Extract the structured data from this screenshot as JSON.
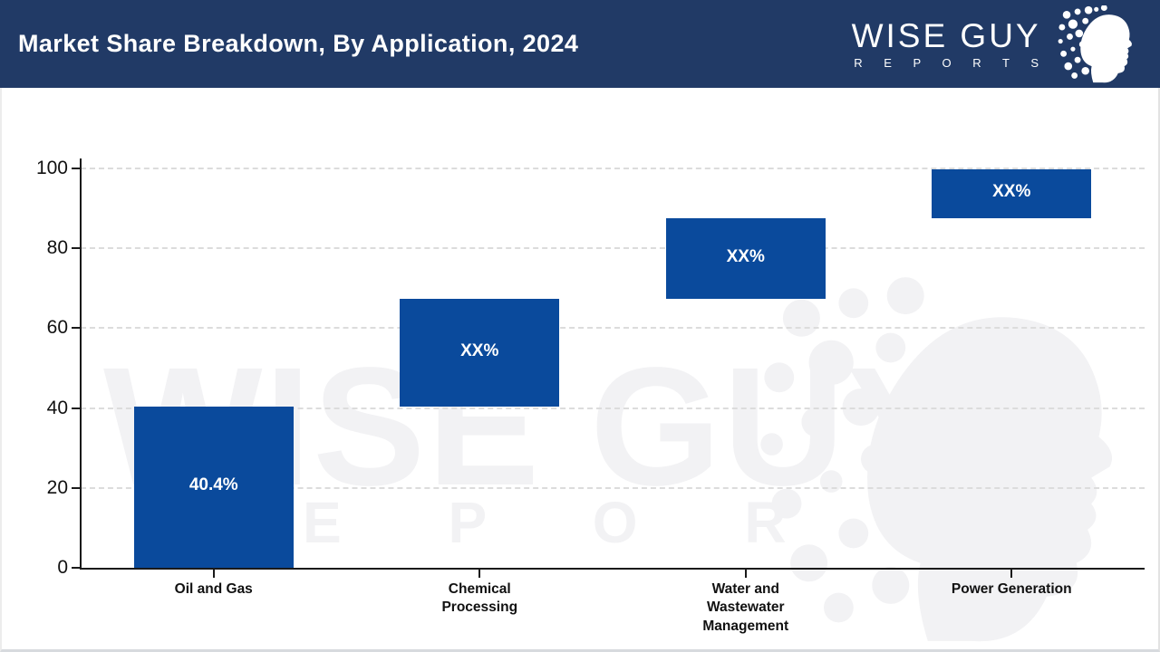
{
  "header": {
    "title": "Market Share Breakdown, By Application, 2024",
    "logo": {
      "line1": "WISE GUY",
      "line2": "R E P O R T S"
    }
  },
  "watermark": {
    "line1": "WISE GUY.",
    "line2": "R E P O R T S ."
  },
  "chart_data": {
    "type": "bar",
    "subtype": "waterfall-floating-bars",
    "title": "Market Share Breakdown, By Application, 2024",
    "categories": [
      "Oil and Gas",
      "Chemical\nProcessing",
      "Water and\nWastewater\nManagement",
      "Power Generation"
    ],
    "segments": [
      {
        "category": "Oil and Gas",
        "start": 0,
        "end": 40.4,
        "value": 40.4,
        "label": "40.4%"
      },
      {
        "category": "Chemical Processing",
        "start": 40.4,
        "end": 67.3,
        "value": 26.9,
        "label": "XX%"
      },
      {
        "category": "Water and Wastewater Management",
        "start": 67.3,
        "end": 87.5,
        "value": 20.2,
        "label": "XX%"
      },
      {
        "category": "Power Generation",
        "start": 87.5,
        "end": 99.8,
        "value": 12.3,
        "label": "XX%"
      }
    ],
    "xlabel": "",
    "ylabel": "",
    "ylim": [
      0,
      100
    ],
    "yticks": [
      0,
      20,
      40,
      60,
      80,
      100
    ],
    "grid": "horizontal-dashed",
    "legend": "none",
    "bar_color": "#0a4a9c",
    "label_color": "#ffffff",
    "axis_color": "#1a1a1a",
    "grid_color": "#dcdcdc"
  }
}
